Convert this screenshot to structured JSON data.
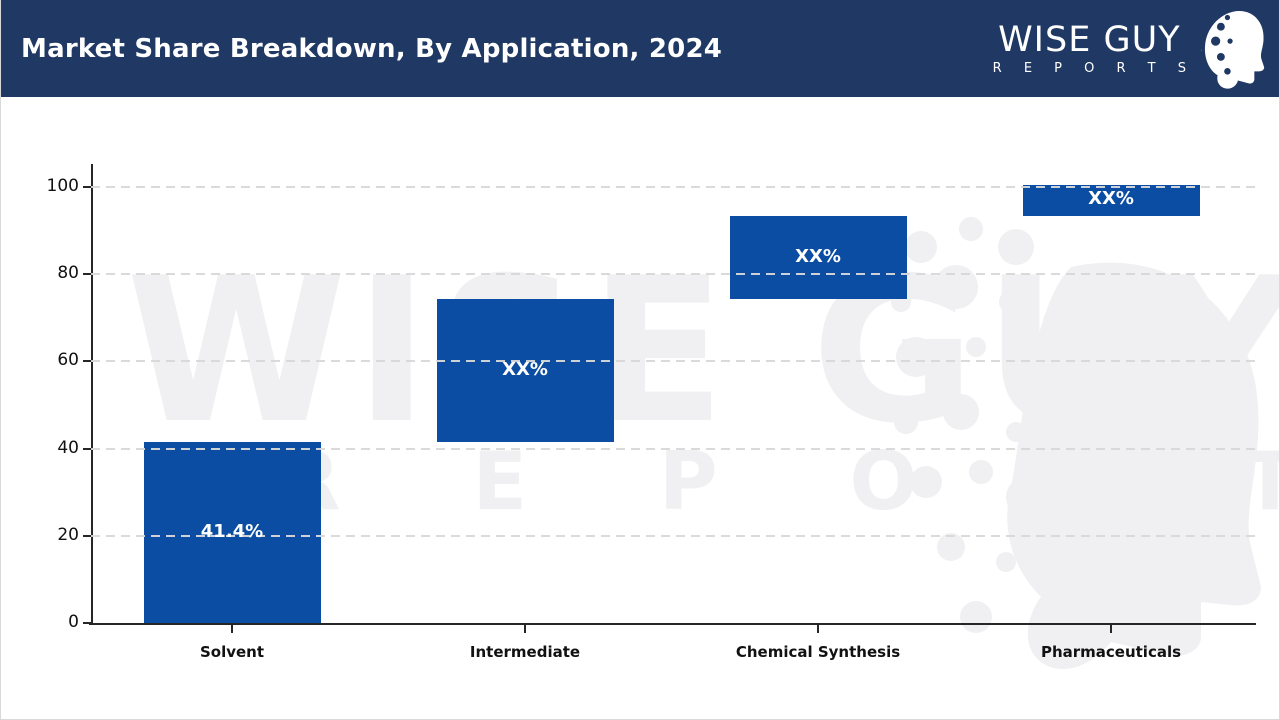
{
  "header": {
    "title": "Market Share Breakdown, By Application, 2024",
    "bg_color": "#1f3864",
    "logo": {
      "line1": "WISE GUY",
      "line2": "R E P O R T S"
    }
  },
  "watermark": {
    "line1": "WISE GUY",
    "line2": "R E P O R T S",
    "color": "#f0f0f2"
  },
  "chart_data": {
    "type": "bar",
    "subtype": "waterfall-floating-bars",
    "title": "Market Share Breakdown, By Application, 2024",
    "categories": [
      "Solvent",
      "Intermediate",
      "Chemical Synthesis",
      "Pharmaceuticals"
    ],
    "segments": [
      {
        "category": "Solvent",
        "start": 0,
        "end": 41.4,
        "label": "41.4%"
      },
      {
        "category": "Intermediate",
        "start": 41.4,
        "end": 74.2,
        "label": "XX%"
      },
      {
        "category": "Chemical Synthesis",
        "start": 74.2,
        "end": 93.4,
        "label": "XX%"
      },
      {
        "category": "Pharmaceuticals",
        "start": 93.4,
        "end": 100.5,
        "label": "XX%"
      }
    ],
    "bar_color": "#0b4da2",
    "label_color": "#ffffff",
    "ylabel": "",
    "xlabel": "",
    "ylim": [
      0,
      100
    ],
    "yticks": [
      0,
      20,
      40,
      60,
      80,
      100
    ],
    "grid": "horizontal-dashed",
    "grid_color": "#d8d8d8",
    "axis_color": "#262626",
    "legend": "none"
  }
}
